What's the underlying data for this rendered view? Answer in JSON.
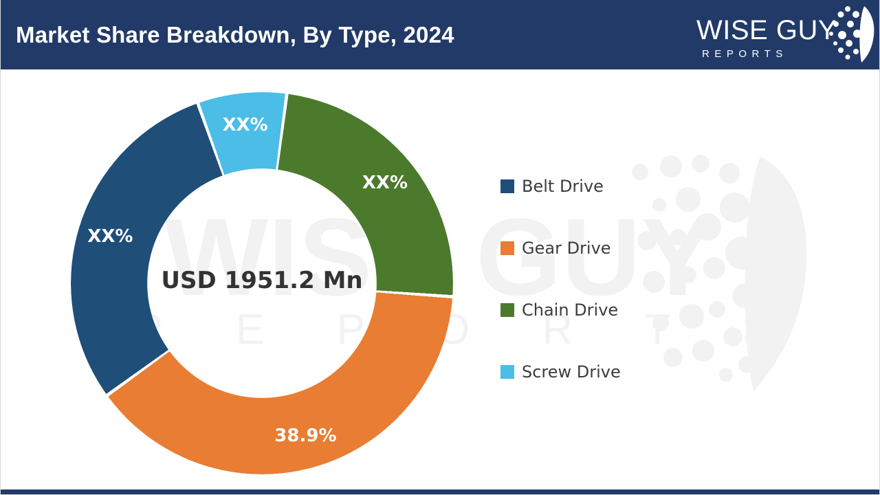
{
  "header": {
    "title": "Market Share Breakdown, By Type, 2024",
    "bg_color": "#213A67",
    "logo": {
      "line1": "WISE GUY",
      "line2": "R E P O R T S"
    }
  },
  "chart_data": {
    "type": "donut",
    "title": "Market Share Breakdown, By Type, 2024",
    "center_label": "USD 1951.2 Mn",
    "legend_position": "right",
    "segments": [
      {
        "label": "Belt Drive",
        "display_value": "XX%",
        "estimated_percent": 29.53,
        "color": "#1F4E79"
      },
      {
        "label": "Gear Drive",
        "display_value": "38.9%",
        "estimated_percent": 38.9,
        "color": "#E87D33"
      },
      {
        "label": "Chain Drive",
        "display_value": "XX%",
        "estimated_percent": 24.04,
        "color": "#4C7A2C"
      },
      {
        "label": "Screw Drive",
        "display_value": "XX%",
        "estimated_percent": 7.53,
        "color": "#4BBDE6"
      }
    ],
    "draw": {
      "start_deg": -19.6,
      "order": [
        3,
        2,
        1,
        0
      ],
      "gap_deg": 1.0,
      "separator_color": "#ffffff"
    }
  },
  "watermark": {
    "line1": "WISE GUY",
    "line2": "R E P O R T S"
  }
}
